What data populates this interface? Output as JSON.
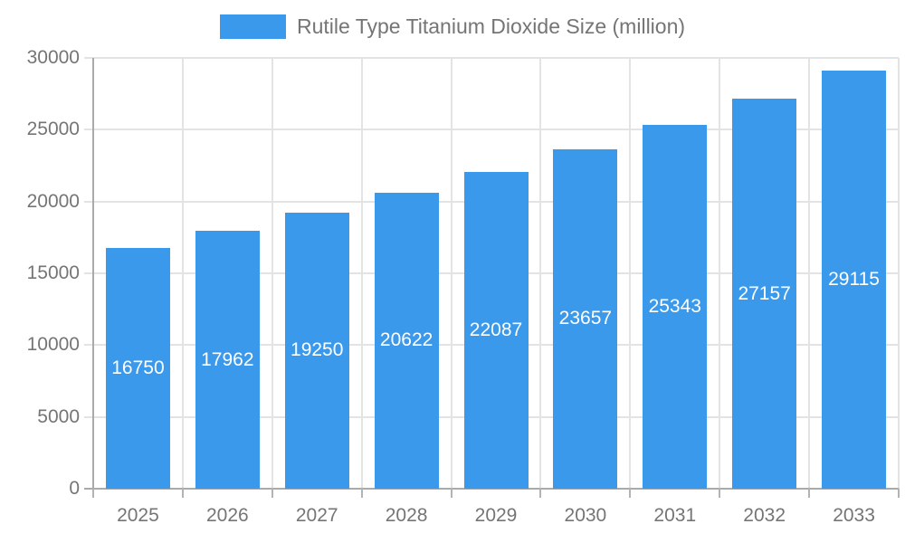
{
  "chart_data": {
    "type": "bar",
    "title": "Rutile Type Titanium Dioxide Size (million)",
    "categories": [
      "2025",
      "2026",
      "2027",
      "2028",
      "2029",
      "2030",
      "2031",
      "2032",
      "2033"
    ],
    "values": [
      16750,
      17962,
      19250,
      20622,
      22087,
      23657,
      25343,
      27157,
      29115
    ],
    "xlabel": "",
    "ylabel": "",
    "ylim": [
      0,
      30000
    ],
    "yticks": [
      0,
      5000,
      10000,
      15000,
      20000,
      25000,
      30000
    ],
    "legend_position": "top",
    "grid": true,
    "value_labels": "inside-center"
  },
  "colors": {
    "bar": "#3B99EC",
    "value_label": "#FFFFFF",
    "axis_text": "#757575",
    "grid_line": "#E3E3E3",
    "axis_line": "#AAAAAA",
    "x_tick": "#B3B3B3",
    "background": "#FFFFFF"
  }
}
